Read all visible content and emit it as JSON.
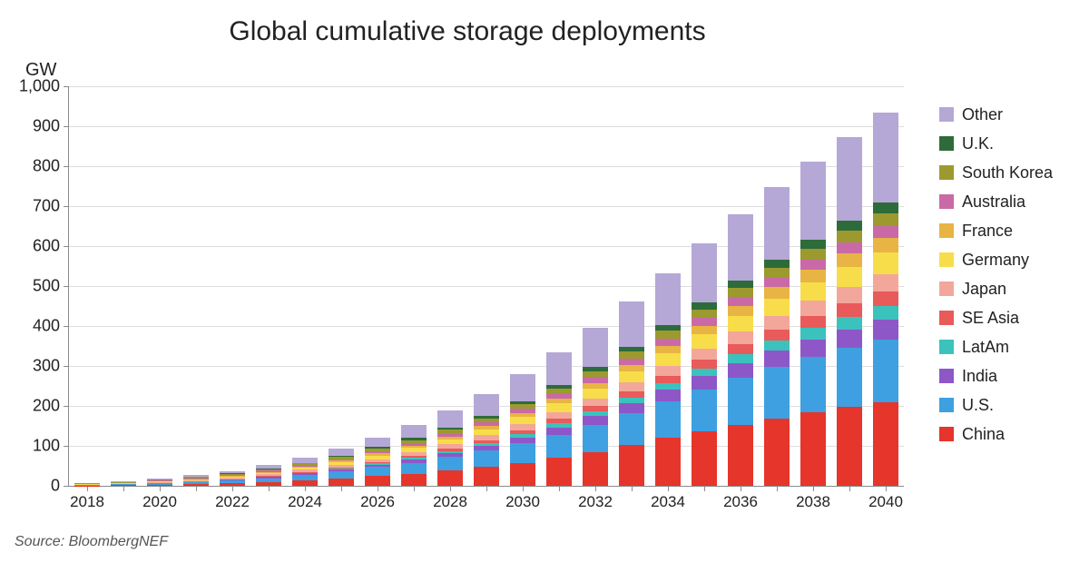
{
  "chart": {
    "type": "stacked-bar",
    "title": "Global cumulative storage deployments",
    "title_fontsize": 30,
    "y_unit_label": "GW",
    "background_color": "#ffffff",
    "grid_color": "#dddddd",
    "axis_color": "#8a8a8a",
    "tick_fontsize": 18,
    "ylim": [
      0,
      1000
    ],
    "ytick_step": 100,
    "yticks": [
      0,
      100,
      200,
      300,
      400,
      500,
      600,
      700,
      800,
      900,
      1000
    ],
    "ytick_labels": [
      "0",
      "100",
      "200",
      "300",
      "400",
      "500",
      "600",
      "700",
      "800",
      "900",
      "1,000"
    ],
    "years": [
      2018,
      2019,
      2020,
      2021,
      2022,
      2023,
      2024,
      2025,
      2026,
      2027,
      2028,
      2029,
      2030,
      2031,
      2032,
      2033,
      2034,
      2035,
      2036,
      2037,
      2038,
      2039,
      2040
    ],
    "x_label_every": 2,
    "bar_width_ratio": 0.72,
    "series": [
      {
        "key": "China",
        "label": "China",
        "color": "#e6352b"
      },
      {
        "key": "US",
        "label": "U.S.",
        "color": "#3ea0e0"
      },
      {
        "key": "India",
        "label": "India",
        "color": "#8e57c8"
      },
      {
        "key": "LatAm",
        "label": "LatAm",
        "color": "#3bc2bd"
      },
      {
        "key": "SEAsia",
        "label": "SE Asia",
        "color": "#e95a5a"
      },
      {
        "key": "Japan",
        "label": "Japan",
        "color": "#f3a79b"
      },
      {
        "key": "Germany",
        "label": "Germany",
        "color": "#f8dd4a"
      },
      {
        "key": "France",
        "label": "France",
        "color": "#e8b443"
      },
      {
        "key": "Australia",
        "label": "Australia",
        "color": "#c96aa6"
      },
      {
        "key": "SouthKorea",
        "label": "South Korea",
        "color": "#9c9a2e"
      },
      {
        "key": "UK",
        "label": "U.K.",
        "color": "#2e6b3a"
      },
      {
        "key": "Other",
        "label": "Other",
        "color": "#b5a8d6"
      }
    ],
    "data": {
      "China": [
        1,
        2,
        3,
        4,
        6,
        9,
        13,
        18,
        24,
        30,
        38,
        47,
        57,
        70,
        85,
        102,
        120,
        137,
        153,
        168,
        183,
        197,
        210
      ],
      "US": [
        1,
        2,
        3,
        5,
        7,
        10,
        14,
        18,
        23,
        28,
        34,
        41,
        49,
        58,
        68,
        80,
        92,
        105,
        118,
        130,
        140,
        148,
        155
      ],
      "India": [
        0,
        0,
        1,
        1,
        2,
        3,
        4,
        5,
        6,
        8,
        10,
        12,
        15,
        18,
        21,
        25,
        29,
        33,
        37,
        41,
        44,
        47,
        50
      ],
      "LatAm": [
        0,
        0,
        0,
        1,
        1,
        1,
        2,
        2,
        3,
        4,
        5,
        6,
        8,
        10,
        12,
        14,
        16,
        19,
        22,
        25,
        28,
        31,
        34
      ],
      "SEAsia": [
        0,
        0,
        0,
        1,
        1,
        2,
        2,
        3,
        4,
        5,
        6,
        8,
        10,
        12,
        14,
        16,
        19,
        22,
        25,
        28,
        31,
        34,
        37
      ],
      "Japan": [
        1,
        1,
        2,
        2,
        3,
        4,
        5,
        6,
        7,
        9,
        11,
        13,
        15,
        17,
        19,
        22,
        25,
        28,
        31,
        34,
        37,
        40,
        43
      ],
      "Germany": [
        1,
        1,
        2,
        2,
        3,
        4,
        5,
        7,
        9,
        11,
        13,
        15,
        18,
        21,
        24,
        27,
        31,
        35,
        39,
        43,
        47,
        51,
        55
      ],
      "France": [
        0,
        0,
        1,
        1,
        2,
        2,
        3,
        4,
        5,
        6,
        7,
        9,
        11,
        13,
        15,
        17,
        19,
        22,
        25,
        28,
        31,
        34,
        37
      ],
      "Australia": [
        1,
        1,
        1,
        2,
        2,
        3,
        3,
        4,
        5,
        6,
        7,
        8,
        10,
        12,
        14,
        16,
        18,
        20,
        22,
        24,
        26,
        28,
        30
      ],
      "SouthKorea": [
        1,
        2,
        2,
        3,
        3,
        4,
        5,
        6,
        7,
        8,
        9,
        10,
        11,
        13,
        15,
        17,
        19,
        21,
        23,
        25,
        27,
        29,
        31
      ],
      "UK": [
        0,
        0,
        1,
        1,
        1,
        2,
        2,
        3,
        4,
        5,
        6,
        7,
        8,
        9,
        11,
        13,
        15,
        17,
        19,
        21,
        23,
        25,
        27
      ],
      "Other": [
        1,
        2,
        3,
        4,
        6,
        9,
        13,
        18,
        24,
        32,
        42,
        54,
        68,
        82,
        97,
        113,
        130,
        148,
        165,
        180,
        195,
        210,
        225
      ]
    },
    "source": "Source: BloombergNEF",
    "legend_fontsize": 18
  }
}
